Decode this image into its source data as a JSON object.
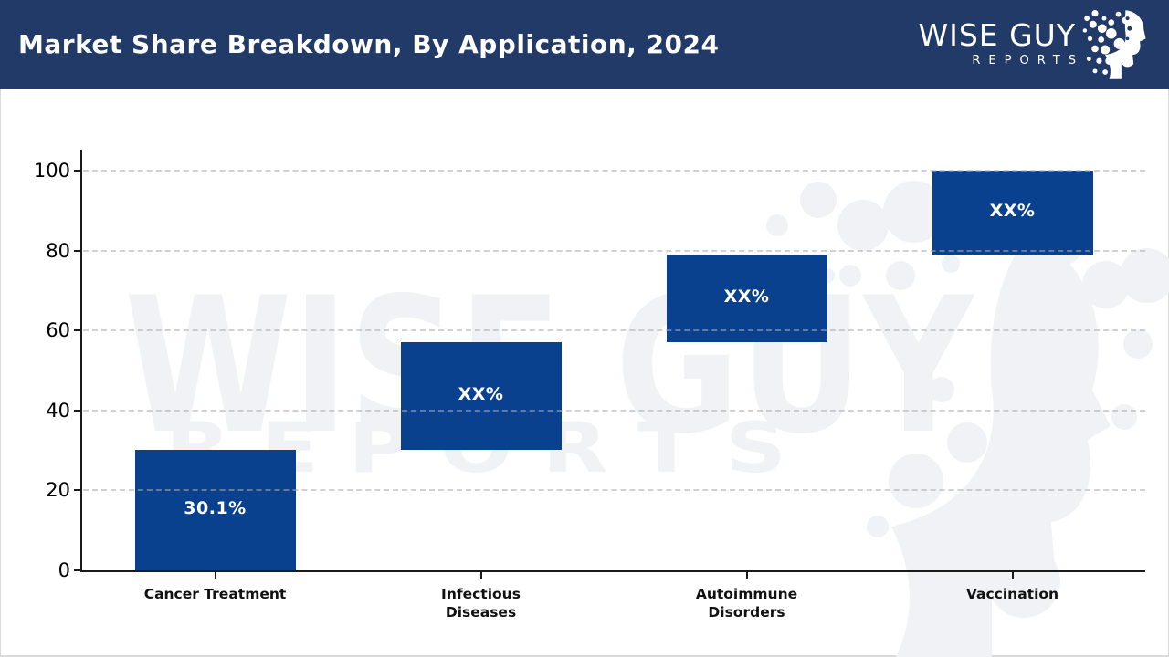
{
  "header": {
    "title": "Market Share Breakdown, By Application, 2024",
    "logo": {
      "line1": "WISE GUY",
      "line2": "REPORTS"
    }
  },
  "watermark": {
    "line1": "WISE GUY",
    "line2": "R E P O R T S"
  },
  "chart_data": {
    "type": "bar",
    "subtype": "waterfall",
    "title": "Market Share Breakdown, By Application, 2024",
    "categories": [
      "Cancer Treatment",
      "Infectious Diseases",
      "Autoimmune Disorders",
      "Vaccination"
    ],
    "categories_multiline": [
      [
        "Cancer Treatment"
      ],
      [
        "Infectious",
        "Diseases"
      ],
      [
        "Autoimmune",
        "Disorders"
      ],
      [
        "Vaccination"
      ]
    ],
    "series": [
      {
        "name": "Market Share",
        "segments": [
          {
            "category": "Cancer Treatment",
            "start": 0,
            "end": 30.1,
            "label": "30.1%"
          },
          {
            "category": "Infectious Diseases",
            "start": 30.1,
            "end": 57.1,
            "label": "XX%"
          },
          {
            "category": "Autoimmune Disorders",
            "start": 57.1,
            "end": 79.0,
            "label": "XX%"
          },
          {
            "category": "Vaccination",
            "start": 79.0,
            "end": 100,
            "label": "XX%"
          }
        ]
      }
    ],
    "ylim": [
      0,
      105
    ],
    "yticks": [
      0,
      20,
      40,
      60,
      80,
      100
    ],
    "grid": "horizontal-dashed",
    "legend": "none",
    "xlabel": "",
    "ylabel": ""
  },
  "colors": {
    "header_bg": "#213a68",
    "bar": "#0a418f",
    "bar_label": "#ffffff",
    "axis": "#1a1a1a",
    "title_text": "#ffffff"
  }
}
